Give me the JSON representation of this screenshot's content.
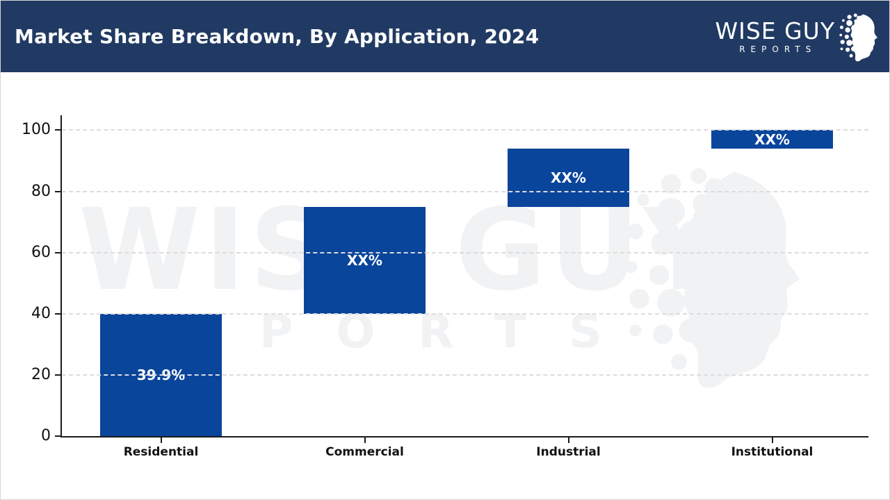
{
  "header": {
    "title": "Market Share Breakdown, By Application, 2024",
    "logo": {
      "line1": "WISE GUY",
      "line2": "REPORTS"
    }
  },
  "watermark": {
    "line1": "WISE GUY",
    "line2": "REPORTS"
  },
  "colors": {
    "header_bg": "#213a63",
    "bar": "#0a459c",
    "grid": "#dcdcdc",
    "axis": "#1a1a1a",
    "bar_label": "#ffffff",
    "watermark_text": "#f1f2f4"
  },
  "chart_data": {
    "type": "bar",
    "subtype": "waterfall",
    "title": "Market Share Breakdown, By Application, 2024",
    "categories": [
      "Residential",
      "Commercial",
      "Industrial",
      "Institutional"
    ],
    "segments": [
      {
        "category": "Residential",
        "start": 0,
        "end": 39.9,
        "label": "39.9%"
      },
      {
        "category": "Commercial",
        "start": 39.9,
        "end": 75.0,
        "label": "XX%"
      },
      {
        "category": "Industrial",
        "start": 75.0,
        "end": 93.9,
        "label": "XX%"
      },
      {
        "category": "Institutional",
        "start": 93.9,
        "end": 100.0,
        "label": "XX%"
      }
    ],
    "yticks": [
      0,
      20,
      40,
      60,
      80,
      100
    ],
    "ylim": [
      0,
      100
    ],
    "xlabel": "",
    "ylabel": "",
    "grid": "horizontal-dashed",
    "legend": "none"
  }
}
